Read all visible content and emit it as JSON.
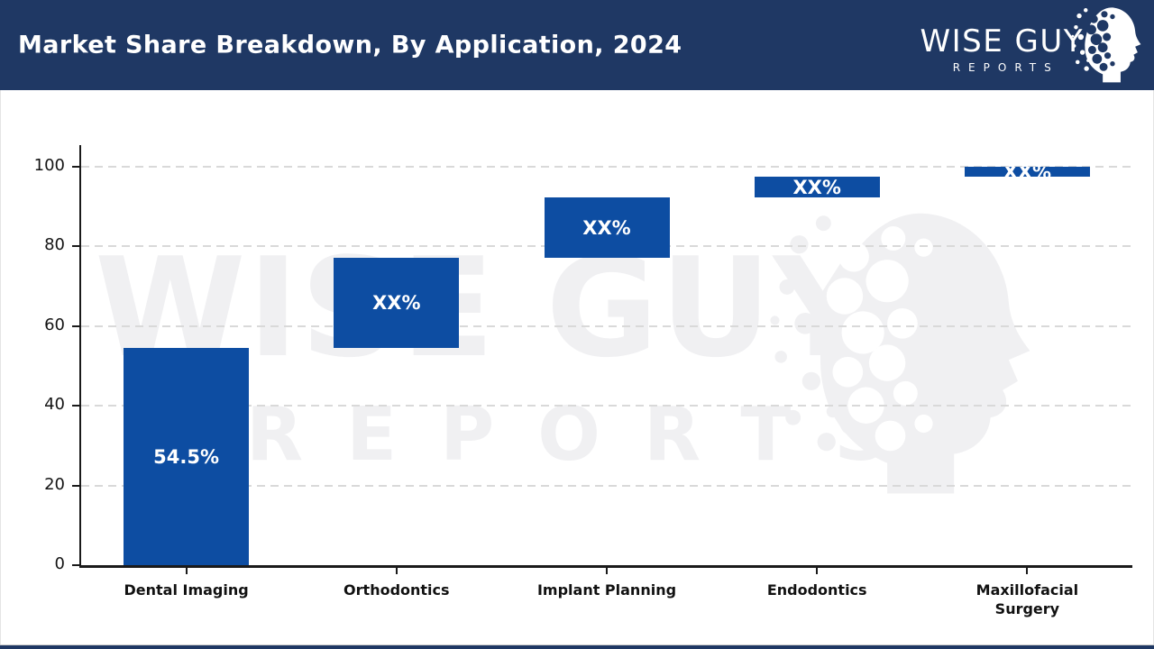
{
  "header": {
    "title": "Market Share Breakdown, By Application, 2024",
    "logo": {
      "line1": "WISE GUY",
      "line2": "REPORTS"
    }
  },
  "watermark": {
    "line1": "WISE GUY",
    "line2": "REPORTS"
  },
  "colors": {
    "navy": "#1f3864",
    "bar_blue": "#0d4da2",
    "watermark": "#f0f0f2",
    "grid": "#d9d9d9",
    "axis": "#1a1a1a",
    "footer_line": "#c9c9c9"
  },
  "chart_data": {
    "type": "bar",
    "subtype": "waterfall",
    "title": "Market Share Breakdown, By Application, 2024",
    "xlabel": "",
    "ylabel": "",
    "ylim": [
      0,
      105
    ],
    "yticks": [
      0,
      20,
      40,
      60,
      80,
      100
    ],
    "grid": "horizontal-dashed",
    "legend": "none",
    "categories": [
      "Dental Imaging",
      "Orthodontics",
      "Implant Planning",
      "Endodontics",
      "Maxillofacial\nSurgery"
    ],
    "segments": [
      {
        "category": "Dental Imaging",
        "start": 0,
        "end": 54.5,
        "value": 54.5,
        "label": "54.5%"
      },
      {
        "category": "Orthodontics",
        "start": 54.5,
        "end": 77.2,
        "value": 22.7,
        "label": "XX%"
      },
      {
        "category": "Implant Planning",
        "start": 77.2,
        "end": 92.2,
        "value": 15.0,
        "label": "XX%"
      },
      {
        "category": "Endodontics",
        "start": 92.2,
        "end": 97.5,
        "value": 5.3,
        "label": "XX%"
      },
      {
        "category": "Maxillofacial Surgery",
        "start": 97.5,
        "end": 100,
        "value": 2.5,
        "label": "XX%"
      }
    ]
  }
}
